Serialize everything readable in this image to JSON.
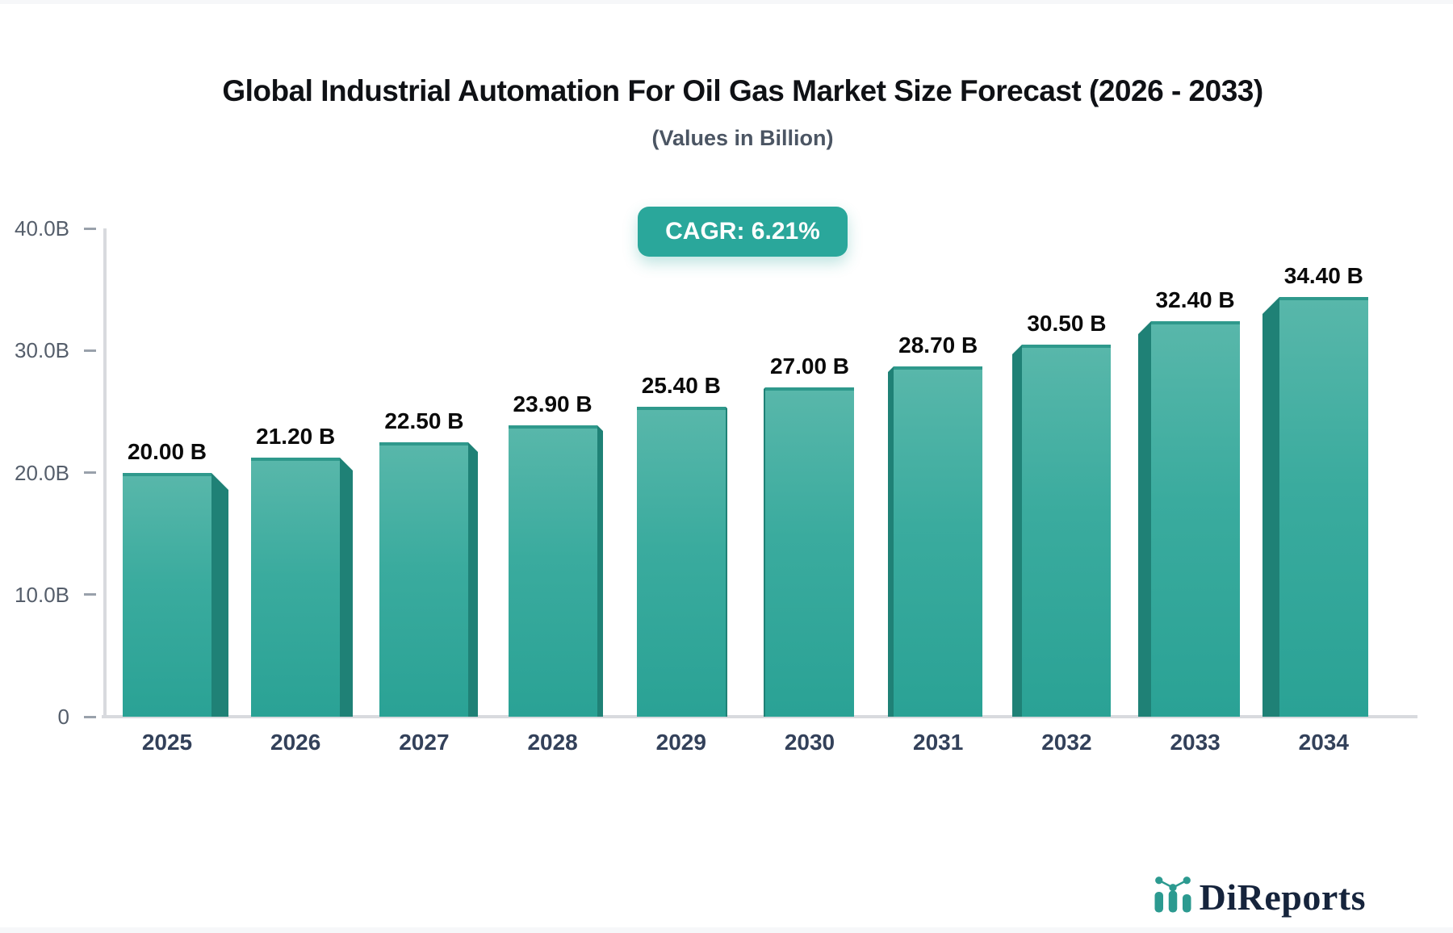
{
  "header": {
    "title": "Global Industrial Automation For Oil Gas Market Size Forecast (2026 - 2033)",
    "subtitle": "(Values in Billion)",
    "cagr_label": "CAGR: 6.21%"
  },
  "chart_data": {
    "type": "bar",
    "title": "Global Industrial Automation For Oil Gas Market Size Forecast (2026 - 2033)",
    "subtitle": "(Values in Billion)",
    "cagr_pct": 6.21,
    "categories": [
      "2025",
      "2026",
      "2027",
      "2028",
      "2029",
      "2030",
      "2031",
      "2032",
      "2033",
      "2034"
    ],
    "values": [
      20.0,
      21.2,
      22.5,
      23.9,
      25.4,
      27.0,
      28.7,
      30.5,
      32.4,
      34.4
    ],
    "value_labels": [
      "20.00 B",
      "21.20 B",
      "22.50 B",
      "23.90 B",
      "25.40 B",
      "27.00 B",
      "28.70 B",
      "30.50 B",
      "32.40 B",
      "34.40 B"
    ],
    "xlabel": "",
    "ylabel": "",
    "ylim": [
      0,
      40
    ],
    "y_tick_values": [
      40,
      30,
      20,
      10,
      0
    ],
    "y_tick_labels": [
      "40.0B",
      "30.0B",
      "20.0B",
      "10.0B",
      "0"
    ],
    "grid": "off",
    "legend": "none",
    "bar_color_top": "#58b7aa",
    "bar_color_bottom": "#2aa295",
    "bar_side_color": "#1f8176",
    "style": "pseudo-3d extruded bars, perspective converging to center"
  },
  "colors": {
    "accent_teal": "#2aa79b",
    "axis_line": "#d8dade",
    "tick": "#99a1ab",
    "y_label_text": "#555e6b",
    "x_label_text": "#33415a",
    "value_label_text": "#0a0a0a",
    "title_text": "#0f1115",
    "subtitle_text": "#4b5563",
    "logo_navy": "#16243c",
    "logo_teal": "#2c9a90"
  },
  "footer": {
    "brand": "DiReports",
    "logo_icon": "mini-bar-chart-with-dots-icon"
  }
}
